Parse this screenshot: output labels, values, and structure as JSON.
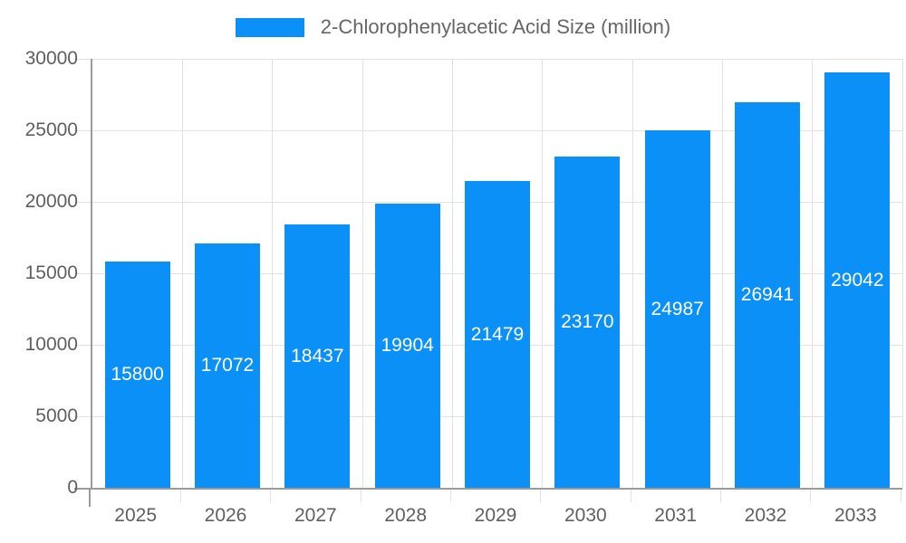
{
  "legend": {
    "label": "2-Chlorophenylacetic Acid Size (million)"
  },
  "chart_data": {
    "type": "bar",
    "title": "2-Chlorophenylacetic Acid Size (million)",
    "categories": [
      "2025",
      "2026",
      "2027",
      "2028",
      "2029",
      "2030",
      "2031",
      "2032",
      "2033"
    ],
    "series": [
      {
        "name": "2-Chlorophenylacetic Acid Size (million)",
        "values": [
          15800,
          17072,
          18437,
          19904,
          21479,
          23170,
          24987,
          26941,
          29042
        ]
      }
    ],
    "xlabel": "",
    "ylabel": "",
    "ylim": [
      0,
      30000
    ],
    "yticks": [
      0,
      5000,
      10000,
      15000,
      20000,
      25000,
      30000
    ],
    "grid": true,
    "legend_position": "top-center",
    "value_label_position": "inside-middle"
  },
  "colors": {
    "bar": "#0B90F8",
    "grid": "#E2E2E2",
    "axis": "#9B9B9B",
    "tick_text": "#5F5F5F",
    "legend_text": "#666666",
    "bar_label": "#FFFFFF",
    "background": "#FFFFFF"
  }
}
